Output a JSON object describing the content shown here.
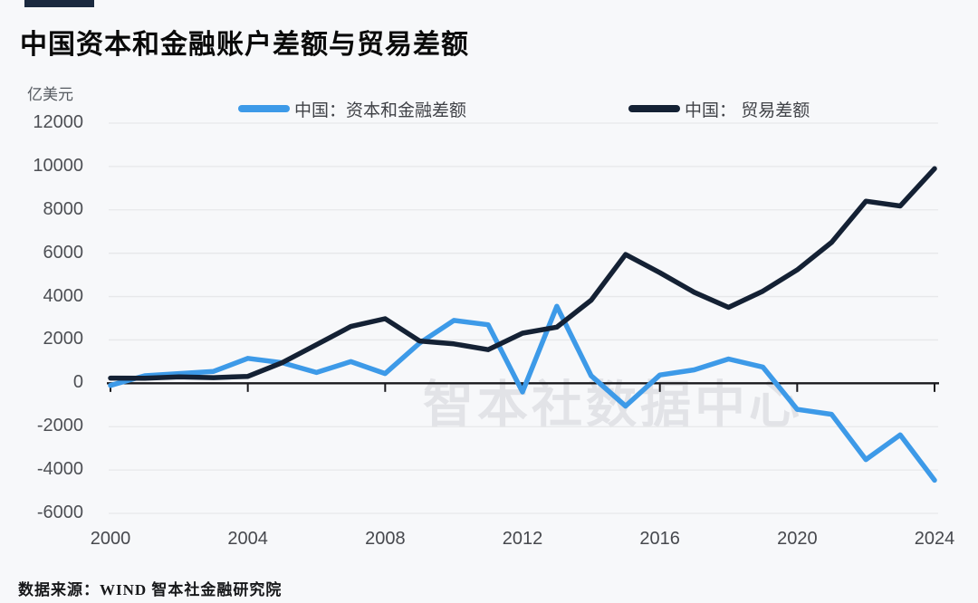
{
  "header": {
    "title": "中国资本和金融账户差额与贸易差额",
    "unit_label": "亿美元"
  },
  "legend": [
    {
      "label": "中国：资本和金融差额",
      "color": "#3d9ae8"
    },
    {
      "label": "中国： 贸易差额",
      "color": "#142134"
    }
  ],
  "watermark": "智本社数据中心",
  "footer": {
    "source": "数据来源：WIND 智本社金融研究院"
  },
  "colors": {
    "background": "#f7f8fa",
    "grid": "#e7e8ea",
    "axis": "#1a1a1e",
    "capital_line": "#3d9ae8",
    "trade_line": "#142134"
  },
  "chart_data": {
    "type": "line",
    "title": "中国资本和金融账户差额与贸易差额",
    "ylabel": "亿美元",
    "x": [
      2000,
      2001,
      2002,
      2003,
      2004,
      2005,
      2006,
      2007,
      2008,
      2009,
      2010,
      2011,
      2012,
      2013,
      2014,
      2015,
      2016,
      2017,
      2018,
      2019,
      2020,
      2021,
      2022,
      2023,
      2024
    ],
    "series": [
      {
        "name": "中国：资本和金融差额",
        "color": "#3d9ae8",
        "values": [
          -100,
          350,
          450,
          550,
          1150,
          950,
          500,
          1000,
          450,
          1850,
          2900,
          2700,
          -400,
          3550,
          350,
          -1050,
          380,
          620,
          1120,
          750,
          -1200,
          -1430,
          -3520,
          -2380,
          -4470
        ]
      },
      {
        "name": "中国： 贸易差额",
        "color": "#142134",
        "values": [
          240,
          230,
          300,
          260,
          320,
          950,
          1780,
          2620,
          2980,
          1950,
          1820,
          1550,
          2310,
          2590,
          3830,
          5940,
          5100,
          4200,
          3500,
          4250,
          5230,
          6500,
          8400,
          8180,
          9900
        ]
      }
    ],
    "ylim": [
      -6000,
      12000
    ],
    "ytick_step": 2000,
    "xticks": [
      2000,
      2004,
      2008,
      2012,
      2016,
      2020,
      2024
    ],
    "grid": true,
    "legend_position": "top"
  }
}
